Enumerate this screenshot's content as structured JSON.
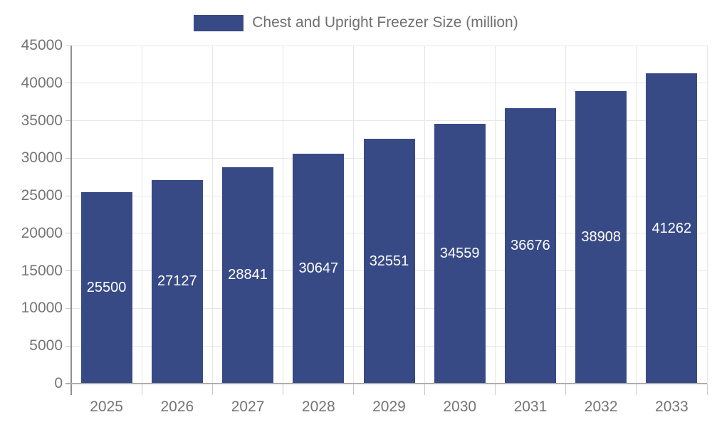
{
  "chart_data": {
    "type": "bar",
    "title": "Chest and Upright Freezer Size (million)",
    "legend_position": "top",
    "categories": [
      "2025",
      "2026",
      "2027",
      "2028",
      "2029",
      "2030",
      "2031",
      "2032",
      "2033"
    ],
    "series": [
      {
        "name": "Chest and Upright Freezer Size (million)",
        "values": [
          25500,
          27127,
          28841,
          30647,
          32551,
          34559,
          36676,
          38908,
          41262
        ]
      }
    ],
    "bar_value_labels": [
      "25500",
      "27127",
      "28841",
      "30647",
      "32551",
      "34559",
      "36676",
      "38908",
      "41262"
    ],
    "xlabel": "",
    "ylabel": "",
    "ylim": [
      0,
      45000
    ],
    "ytick_step": 5000,
    "ytick_labels": [
      "0",
      "5000",
      "10000",
      "15000",
      "20000",
      "25000",
      "30000",
      "35000",
      "40000",
      "45000"
    ],
    "grid": true,
    "bar_labels_inside_centered": true,
    "colors": {
      "bar": "#384A86",
      "bar_label_text": "#ffffff",
      "axis_text": "#757575",
      "legend_text": "#707070",
      "gridline": "#e6e6e6",
      "y_axis_line": "#8f8f8f",
      "x_axis_line": "#adadad",
      "tick": "#c8c8c8",
      "background": "#ffffff"
    }
  }
}
